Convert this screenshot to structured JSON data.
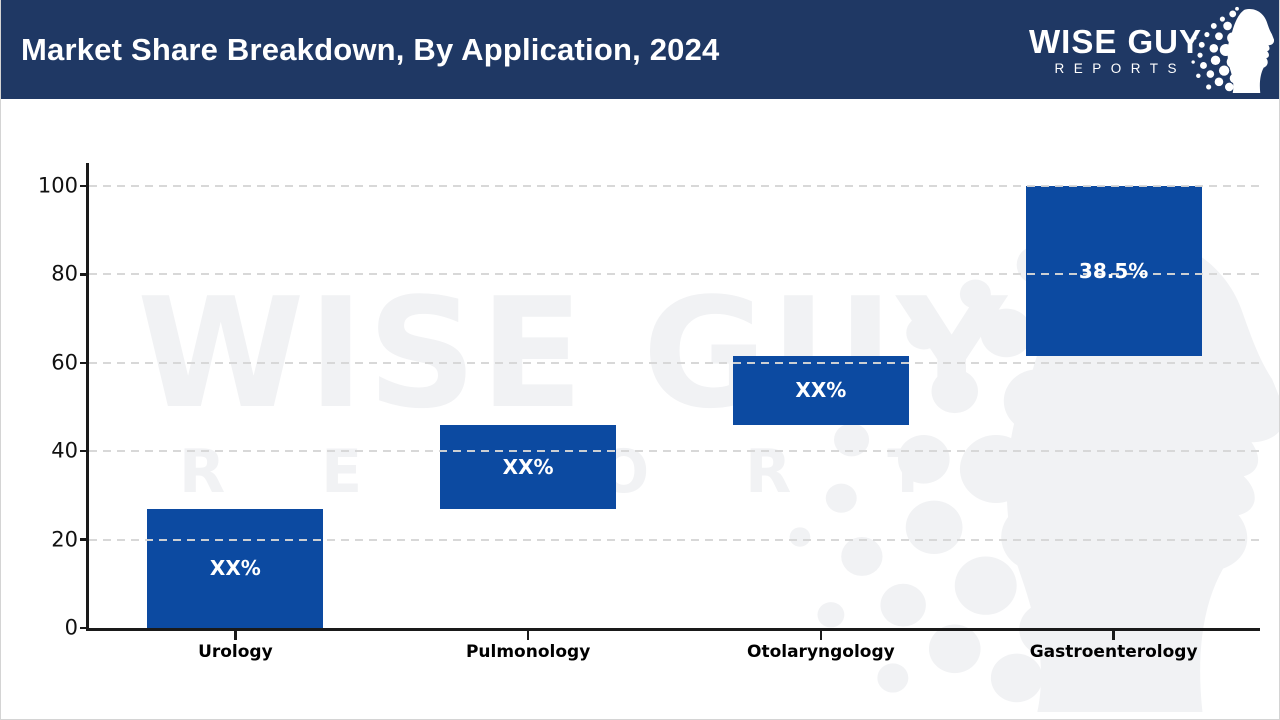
{
  "header": {
    "title": "Market Share Breakdown, By Application, 2024",
    "logo_line1": "WISE GUY",
    "logo_line2": "REPORTS"
  },
  "watermark": {
    "line1": "WISE GUY",
    "line2": "REPORTS"
  },
  "chart_data": {
    "type": "bar",
    "variant": "floating-segment-waterfall",
    "title": "Market Share Breakdown, By Application, 2024",
    "categories": [
      "Urology",
      "Pulmonology",
      "Otolaryngology",
      "Gastroenterology"
    ],
    "segments": [
      {
        "category": "Urology",
        "start": 0,
        "end": 27,
        "label": "XX%"
      },
      {
        "category": "Pulmonology",
        "start": 27,
        "end": 46,
        "label": "XX%"
      },
      {
        "category": "Otolaryngology",
        "start": 46,
        "end": 61.5,
        "label": "XX%"
      },
      {
        "category": "Gastroenterology",
        "start": 61.5,
        "end": 100,
        "label": "38.5%"
      }
    ],
    "yticks": [
      0,
      20,
      40,
      60,
      80,
      100
    ],
    "ylim": [
      0,
      100
    ],
    "xlabel": "",
    "ylabel": "",
    "legend": "none",
    "grid": "horizontal-dashed"
  },
  "colors": {
    "header_bg": "#1F3864",
    "bar": "#0C4AA1",
    "bar_label": "#FFFFFF",
    "grid": "#D6D6D6",
    "axis": "#1A1A1A",
    "watermark": "#F1F2F4"
  }
}
